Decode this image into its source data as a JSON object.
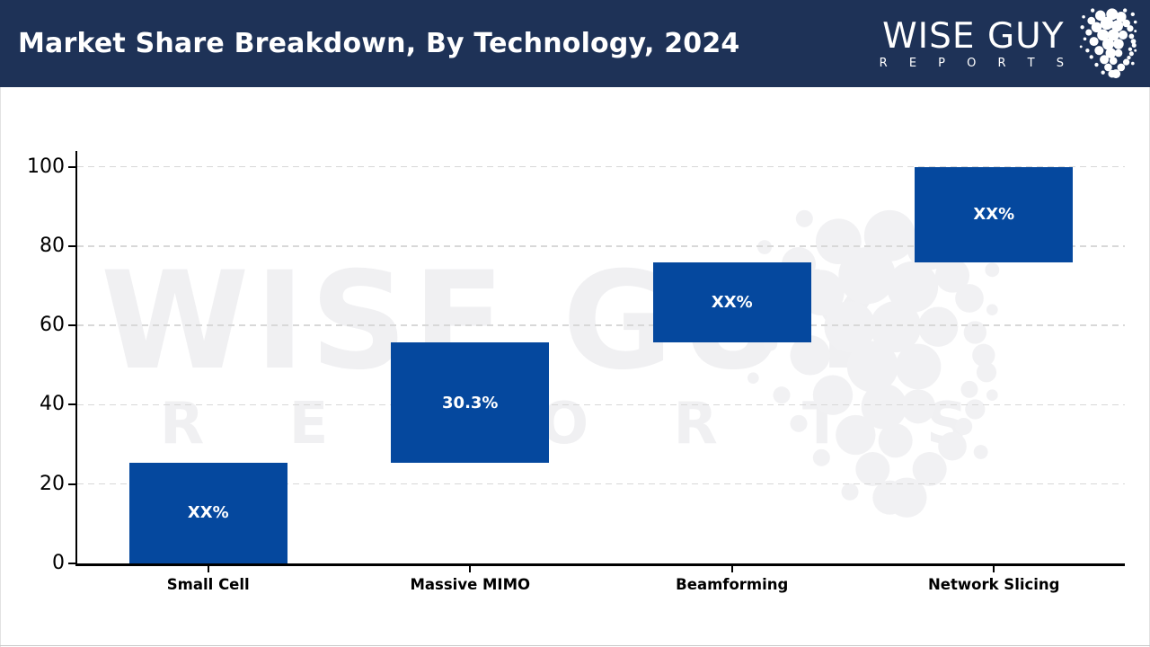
{
  "header": {
    "title": "Market Share Breakdown, By Technology, 2024",
    "logo": {
      "line1": "WISE GUY",
      "line2": "R E P O R T S"
    }
  },
  "watermark": {
    "line1": "WISE GUY",
    "line2": "R E P O R T S"
  },
  "colors": {
    "header_bg": "#1E3257",
    "bar": "#05489E",
    "bar_label": "#FFFFFF",
    "gridline": "#D8D8D8",
    "axis": "#000000",
    "watermark": "#F0F0F2"
  },
  "chart_data": {
    "type": "bar",
    "subtype": "waterfall",
    "title": "Market Share Breakdown, By Technology, 2024",
    "xlabel": "",
    "ylabel": "",
    "categories": [
      "Small Cell",
      "Massive MIMO",
      "Beamforming",
      "Network Slicing"
    ],
    "segments": [
      {
        "category": "Small Cell",
        "start": 0,
        "end": 25.4,
        "value": 25.4,
        "label": "XX%"
      },
      {
        "category": "Massive MIMO",
        "start": 25.4,
        "end": 55.7,
        "value": 30.3,
        "label": "30.3%"
      },
      {
        "category": "Beamforming",
        "start": 55.7,
        "end": 75.9,
        "value": 20.2,
        "label": "XX%"
      },
      {
        "category": "Network Slicing",
        "start": 75.9,
        "end": 100,
        "value": 24.1,
        "label": "XX%"
      }
    ],
    "yticks": [
      0,
      20,
      40,
      60,
      80,
      100
    ],
    "ylim": [
      0,
      104
    ],
    "grid": "dashed-horizontal",
    "legend": "none"
  }
}
